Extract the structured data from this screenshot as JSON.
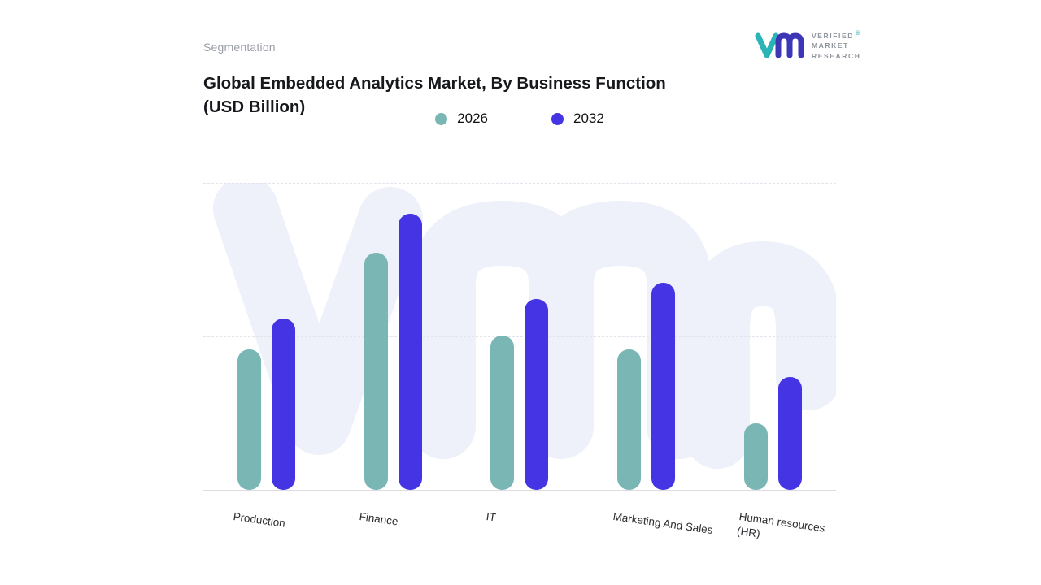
{
  "header": {
    "eyebrow": "Segmentation",
    "title": "Global Embedded Analytics Market, By Business Function (USD Billion)"
  },
  "logo": {
    "line1": "VERIFIED",
    "line2": "MARKET",
    "line3": "RESEARCH",
    "registered_mark": "®"
  },
  "chart_data": {
    "type": "bar",
    "title": "Global Embedded Analytics Market, By Business Function (USD Billion)",
    "categories": [
      "Production",
      "Finance",
      "IT",
      "Marketing And Sales",
      "Human resources (HR)"
    ],
    "series": [
      {
        "name": "2026",
        "color": "#7ab6b3",
        "values": [
          51,
          86,
          56,
          51,
          24
        ]
      },
      {
        "name": "2032",
        "color": "#4434e3",
        "values": [
          62,
          100,
          69,
          75,
          41
        ]
      }
    ],
    "ylim": [
      0,
      100
    ],
    "y_axis_labels_visible": false,
    "xlabel": "",
    "ylabel": "",
    "grid": "dashed horizontal gridlines at top and middle, solid baseline",
    "legend_position": "top-center",
    "units_note": "no numeric axis shown; values estimated relative to tallest bar = 100"
  },
  "colors": {
    "teal": "#7ab6b3",
    "indigo": "#4434e3",
    "watermark": "#eef0fa",
    "grid": "#e4e4ec",
    "axis": "#dcdce2"
  }
}
